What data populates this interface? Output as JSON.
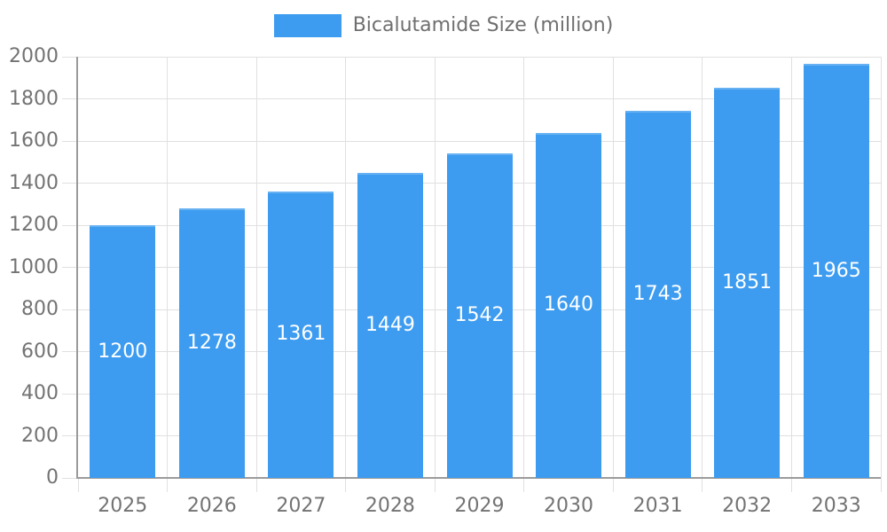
{
  "chart_data": {
    "type": "bar",
    "title": "",
    "series_name": "Bicalutamide Size (million)",
    "categories": [
      "2025",
      "2026",
      "2027",
      "2028",
      "2029",
      "2030",
      "2031",
      "2032",
      "2033"
    ],
    "values": [
      1200,
      1278,
      1361,
      1449,
      1542,
      1640,
      1743,
      1851,
      1965
    ],
    "value_labels": [
      "1200",
      "1278",
      "1361",
      "1449",
      "1542",
      "1640",
      "1743",
      "1851",
      "1965"
    ],
    "xlabel": "",
    "ylabel": "",
    "ylim": [
      0,
      2000
    ],
    "ytick_step": 200,
    "y_tick_labels": [
      "0",
      "200",
      "400",
      "600",
      "800",
      "1000",
      "1200",
      "1400",
      "1600",
      "1800",
      "2000"
    ],
    "grid": true,
    "legend_position": "top-center",
    "colors": {
      "bar": "#3D9CF0",
      "value_label": "#ffffff",
      "axis_line": "#9b9b9b",
      "gridline": "#e0e0e0",
      "tick_label": "#737373",
      "legend_text": "#6f6f6f",
      "background": "#ffffff"
    }
  }
}
